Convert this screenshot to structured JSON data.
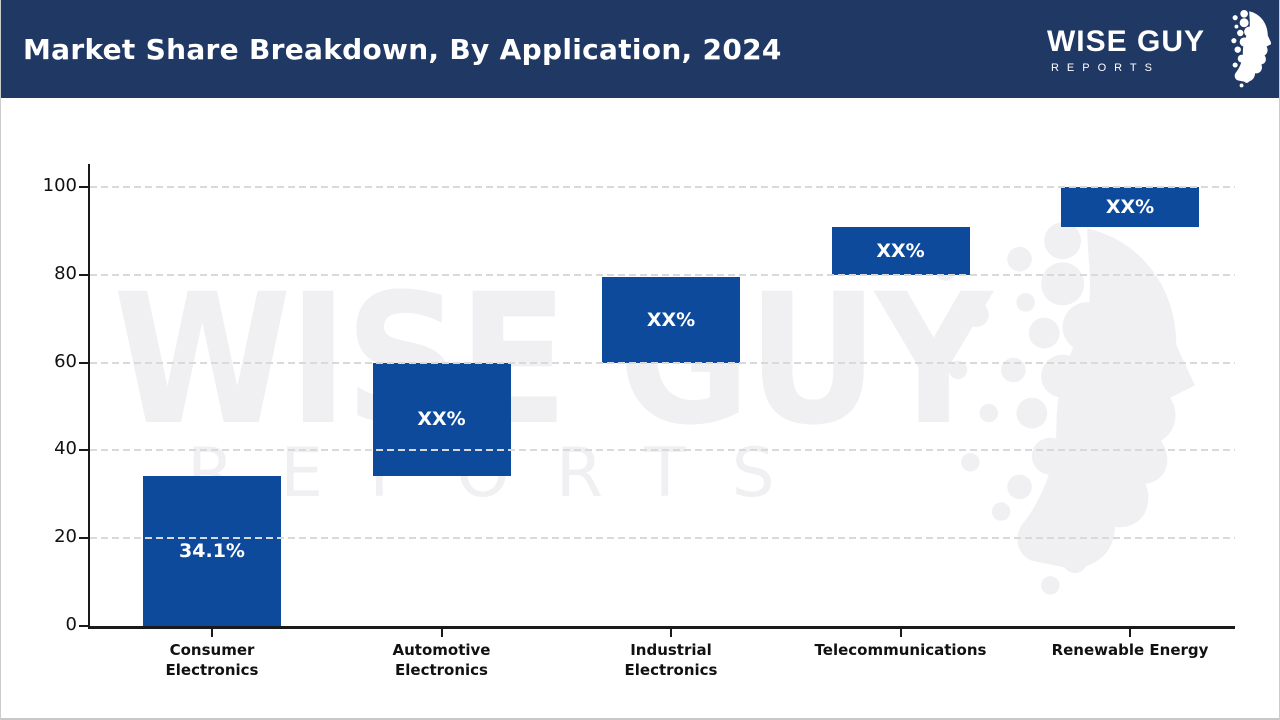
{
  "header": {
    "title": "Market Share Breakdown, By Application, 2024",
    "logo_line1": "WISE GUY",
    "logo_line2": "REPORTS"
  },
  "watermark": {
    "line1": "WISE GUY",
    "line2": "REPORTS"
  },
  "chart_data": {
    "type": "bar",
    "subtype": "waterfall",
    "title": "Market Share Breakdown, By Application, 2024",
    "categories": [
      "Consumer Electronics",
      "Automotive Electronics",
      "Industrial Electronics",
      "Telecommunications",
      "Renewable Energy"
    ],
    "category_label_lines": [
      [
        "Consumer",
        "Electronics"
      ],
      [
        "Automotive",
        "Electronics"
      ],
      [
        "Industrial",
        "Electronics"
      ],
      [
        "Telecommunications"
      ],
      [
        "Renewable Energy"
      ]
    ],
    "segments": [
      {
        "category": "Consumer Electronics",
        "start": 0,
        "end": 34.1,
        "label": "34.1%"
      },
      {
        "category": "Automotive Electronics",
        "start": 34.1,
        "end": 60,
        "label": "XX%"
      },
      {
        "category": "Industrial Electronics",
        "start": 60,
        "end": 79.5,
        "label": "XX%"
      },
      {
        "category": "Telecommunications",
        "start": 80,
        "end": 91,
        "label": "XX%"
      },
      {
        "category": "Renewable Energy",
        "start": 91,
        "end": 100,
        "label": "XX%"
      }
    ],
    "ylabel": "",
    "xlabel": "",
    "ylim": [
      0,
      100
    ],
    "yticks": [
      0,
      20,
      40,
      60,
      80,
      100
    ],
    "grid": "horizontal dashed",
    "legend": "none",
    "bar_color": "#0d4a9c",
    "bar_label_color": "#ffffff"
  },
  "colors": {
    "header_bg": "#203864",
    "bar": "#0d4a9c",
    "grid": "#d9d9d9",
    "axis": "#1a1a1a",
    "watermark": "#f0f0f3",
    "page_bg": "#ffffff",
    "border": "#c8c8c8"
  }
}
